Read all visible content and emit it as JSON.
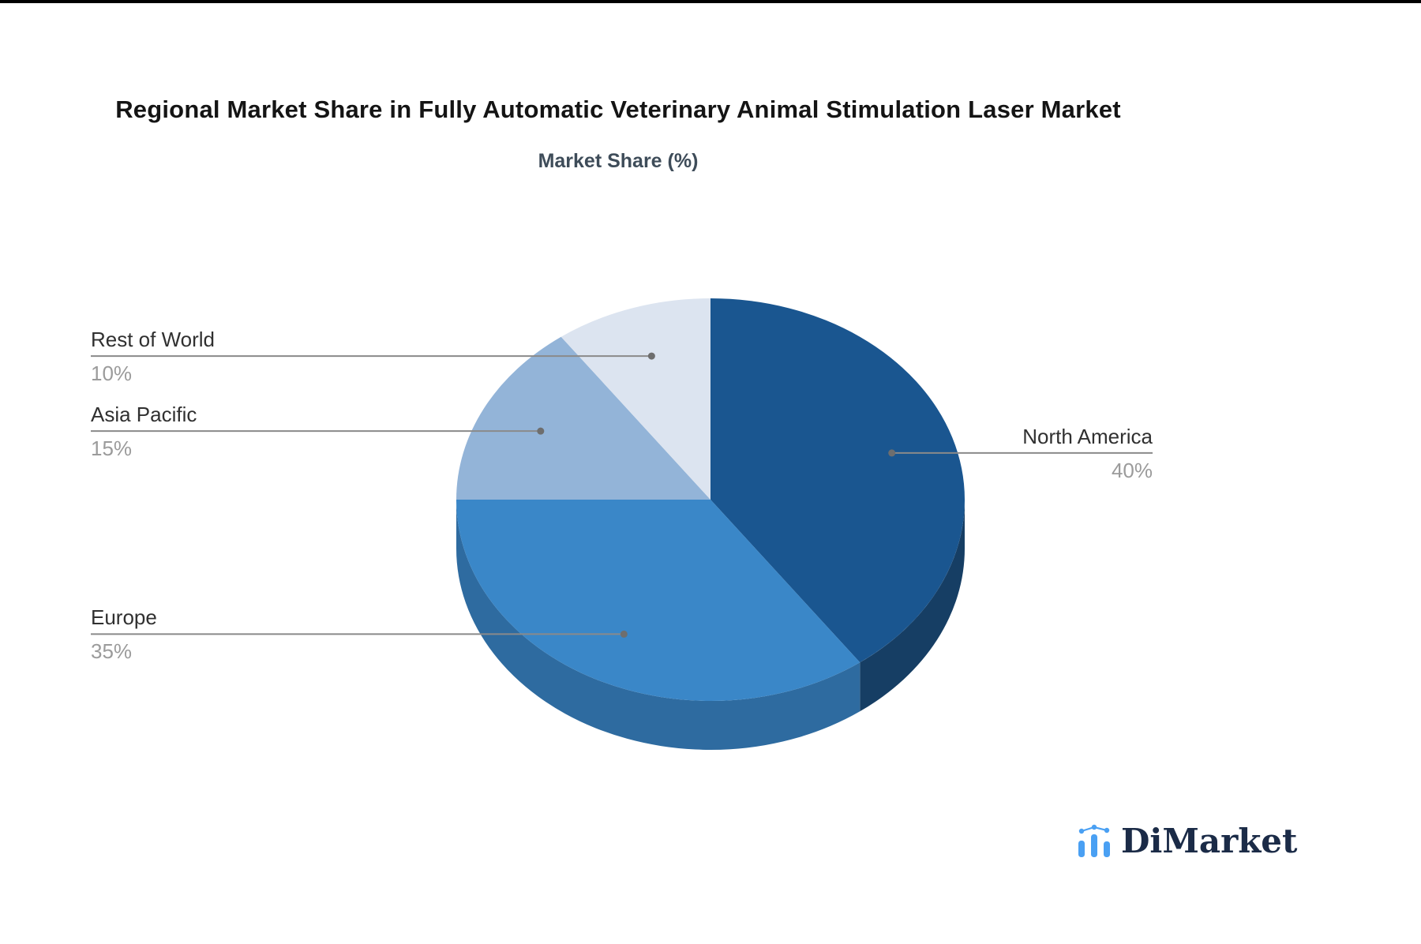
{
  "chart_data": {
    "type": "pie",
    "style": "3d",
    "title": "Regional Market Share in Fully Automatic Veterinary Animal Stimulation Laser Market",
    "subtitle": "Market Share (%)",
    "unit": "%",
    "direction": "clockwise",
    "start_position": "12-o'clock",
    "legend": "none (leader-line labels)",
    "slices": [
      {
        "label": "North America",
        "value": 40,
        "pct_label": "40%",
        "color": "#1a5690",
        "side_color": "#163e64",
        "label_side": "right"
      },
      {
        "label": "Europe",
        "value": 35,
        "pct_label": "35%",
        "color": "#3a87c8",
        "side_color": "#2e6ba0",
        "label_side": "left"
      },
      {
        "label": "Asia Pacific",
        "value": 15,
        "pct_label": "15%",
        "color": "#93b4d8",
        "side_color": "#7593b0",
        "label_side": "left"
      },
      {
        "label": "Rest of World",
        "value": 10,
        "pct_label": "10%",
        "color": "#dce4f0",
        "side_color": "#b8c2d0",
        "label_side": "left"
      }
    ]
  },
  "brand": {
    "name": "DiMarket",
    "icon": "bar-line-chart-icon",
    "icon_color": "#4aa0f3",
    "text_color": "#1b2b47"
  },
  "styles": {
    "background": "#ffffff",
    "title_color": "#141414",
    "subtitle_color": "#3e4c59",
    "label_color": "#303030",
    "pct_color": "#9b9b9b",
    "leader_line_color": "#8a8a8a",
    "leader_dot_color": "#6e6e6e"
  }
}
